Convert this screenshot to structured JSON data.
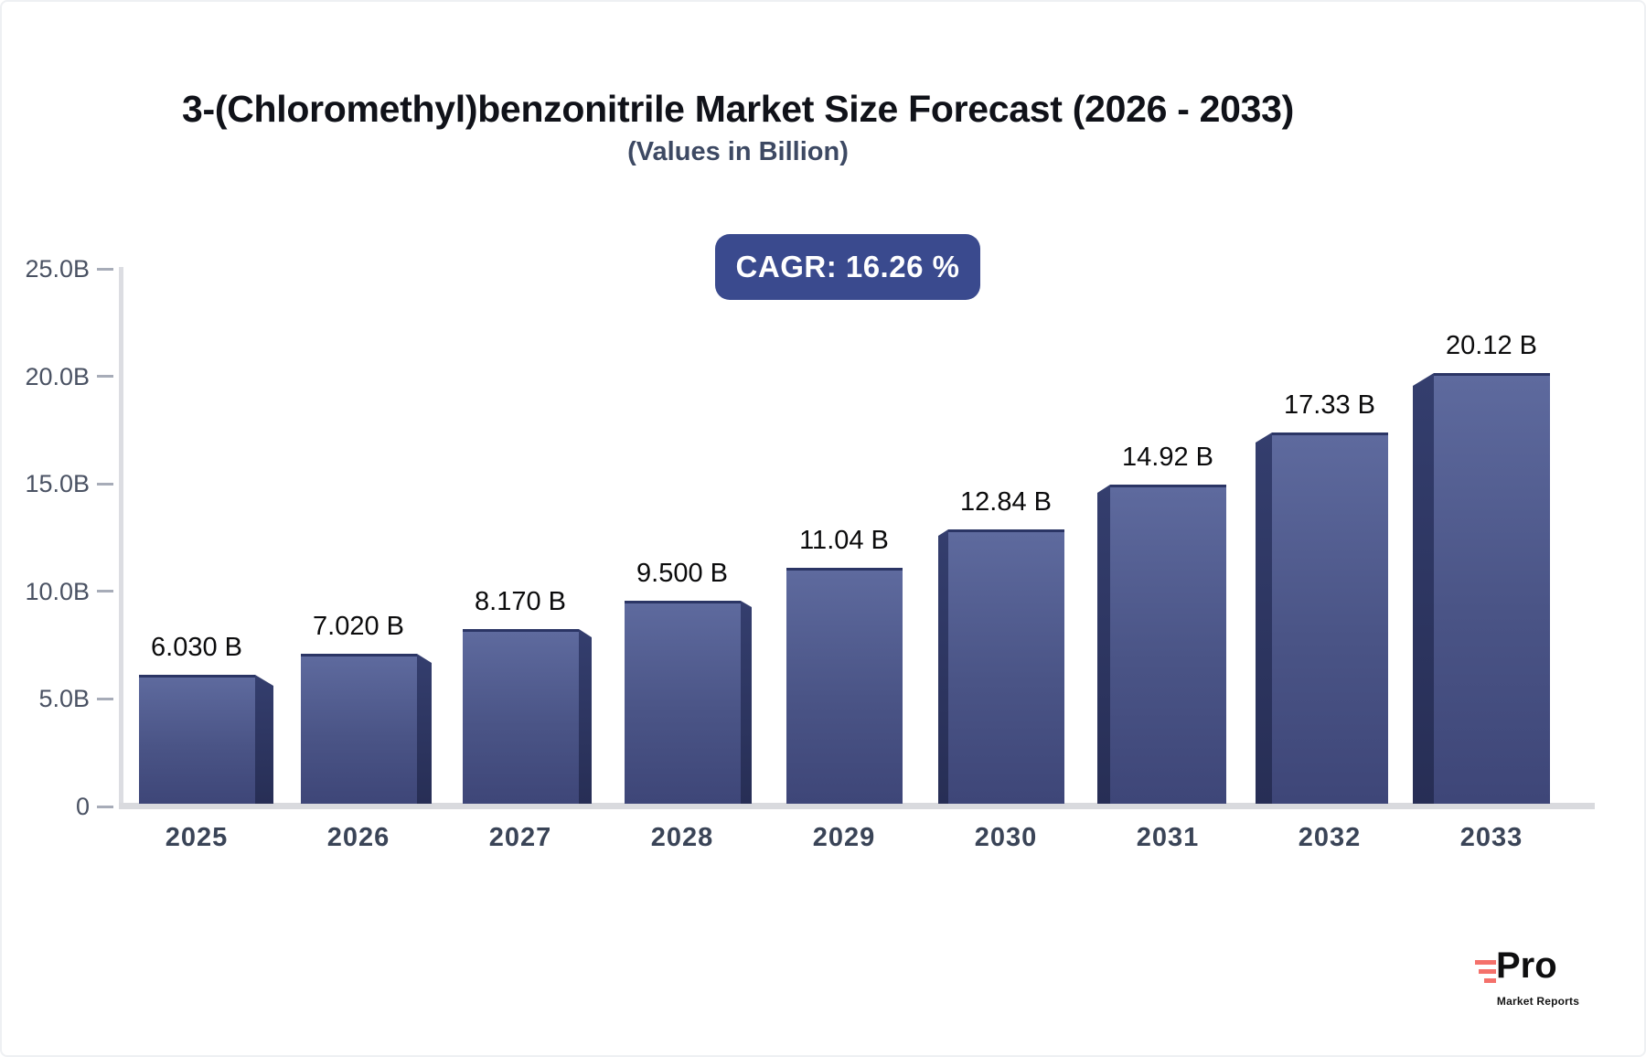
{
  "header": {
    "title": "3-(Chloromethyl)benzonitrile Market Size Forecast (2026 - 2033)",
    "subtitle": "(Values in Billion)",
    "cagr_label": "CAGR: 16.26 %"
  },
  "chart_data": {
    "type": "bar",
    "title": "3-(Chloromethyl)benzonitrile Market Size Forecast (2026 - 2033)",
    "subtitle": "(Values in Billion)",
    "cagr_percent": 16.26,
    "unit": "Billion",
    "categories": [
      "2025",
      "2026",
      "2027",
      "2028",
      "2029",
      "2030",
      "2031",
      "2032",
      "2033"
    ],
    "values": [
      6.03,
      7.02,
      8.17,
      9.5,
      11.04,
      12.84,
      14.92,
      17.33,
      20.12
    ],
    "value_labels": [
      "6.030 B",
      "7.020 B",
      "8.170 B",
      "9.500 B",
      "11.04 B",
      "12.84 B",
      "14.92 B",
      "17.33 B",
      "20.12 B"
    ],
    "y_tick_values": [
      25,
      20,
      15,
      10,
      5,
      0
    ],
    "y_tick_labels": [
      "25.0B",
      "20.0B",
      "15.0B",
      "10.0B",
      "5.0B",
      "0"
    ],
    "ylim": [
      0,
      25
    ],
    "grid": false,
    "legend": "none",
    "bar_3d_sides": [
      "right",
      "right",
      "right",
      "right",
      "none",
      "left",
      "left",
      "left",
      "left"
    ],
    "side_widths": [
      20,
      16,
      14,
      12,
      0,
      11,
      14,
      18,
      23
    ]
  },
  "colors": {
    "bar_face_top": "#5e6a9e",
    "bar_face_bottom": "#3e4678",
    "bar_side": "#2c355f",
    "bar_top_edge": "#2b3565",
    "badge_background": "#3a4a8e",
    "badge_text": "#ffffff",
    "axis_line": "#d9dade",
    "tick_text": "#4a5263",
    "year_text": "#3a4457",
    "title_text": "#101219",
    "subtitle_text": "#3d4963",
    "logo_accent": "#f4716b"
  },
  "logo": {
    "name": "Pro",
    "tagline": "Market Reports"
  }
}
